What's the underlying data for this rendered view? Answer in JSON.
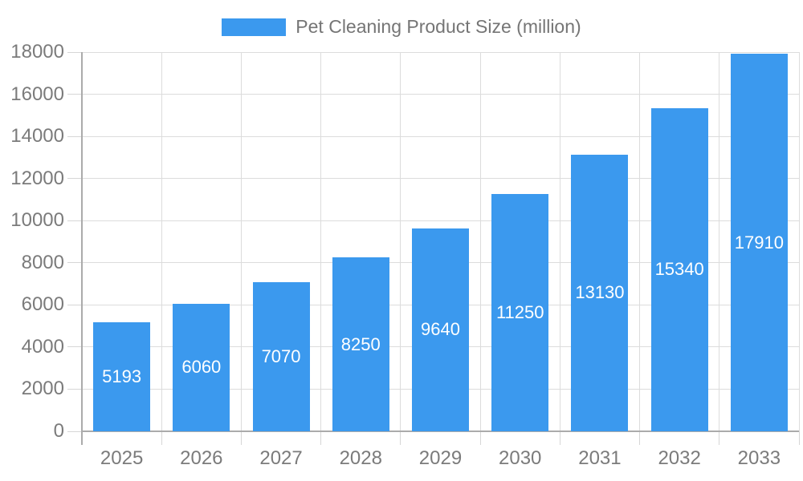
{
  "legend": {
    "label": "Pet Cleaning Product Size (million)"
  },
  "chart_data": {
    "type": "bar",
    "title": "Pet Cleaning Product Size (million)",
    "categories": [
      "2025",
      "2026",
      "2027",
      "2028",
      "2029",
      "2030",
      "2031",
      "2032",
      "2033"
    ],
    "values": [
      5193,
      6060,
      7070,
      8250,
      9640,
      11250,
      13130,
      15340,
      17910
    ],
    "value_labels": [
      "5193",
      "6060",
      "7070",
      "8250",
      "9640",
      "11250",
      "13130",
      "15340",
      "17910"
    ],
    "xlabel": "",
    "ylabel": "",
    "ylim": [
      0,
      18000
    ],
    "ytick_step": 2000,
    "ytick_labels": [
      "0",
      "2000",
      "4000",
      "6000",
      "8000",
      "10000",
      "12000",
      "14000",
      "16000",
      "18000"
    ],
    "grid": true,
    "legend_position": "top-center",
    "colors": {
      "bar": "#3b99ee",
      "axis": "#ababab",
      "gridline": "#dcdcdc",
      "tick": "#d6d6d6",
      "axis_label": "#7b7b7b",
      "legend_label": "#757575",
      "value_label": "#ffffff",
      "background": "#ffffff"
    }
  }
}
